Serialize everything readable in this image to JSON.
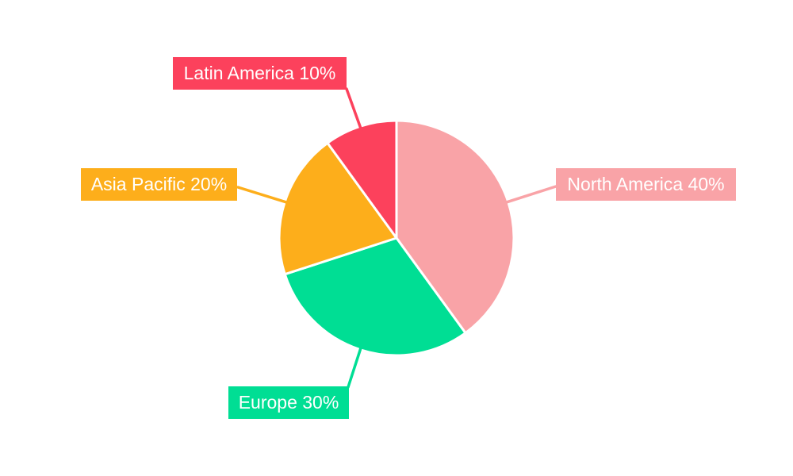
{
  "chart_data": {
    "type": "pie",
    "title": "",
    "categories": [
      "North America",
      "Europe",
      "Asia Pacific",
      "Latin America"
    ],
    "values": [
      40,
      30,
      20,
      10
    ],
    "unit": "%",
    "labels": [
      "North America 40%",
      "Europe 30%",
      "Asia Pacific 20%",
      "Latin America 10%"
    ],
    "colors": [
      "#F9A3A7",
      "#00DE94",
      "#FDAE1B",
      "#FC415C"
    ],
    "label_text_color": "#FFFFFF",
    "slice_border_color": "#FFFFFF",
    "background": "#FFFFFF",
    "start_angle": "top",
    "direction": "clockwise",
    "legend_position": "none"
  }
}
